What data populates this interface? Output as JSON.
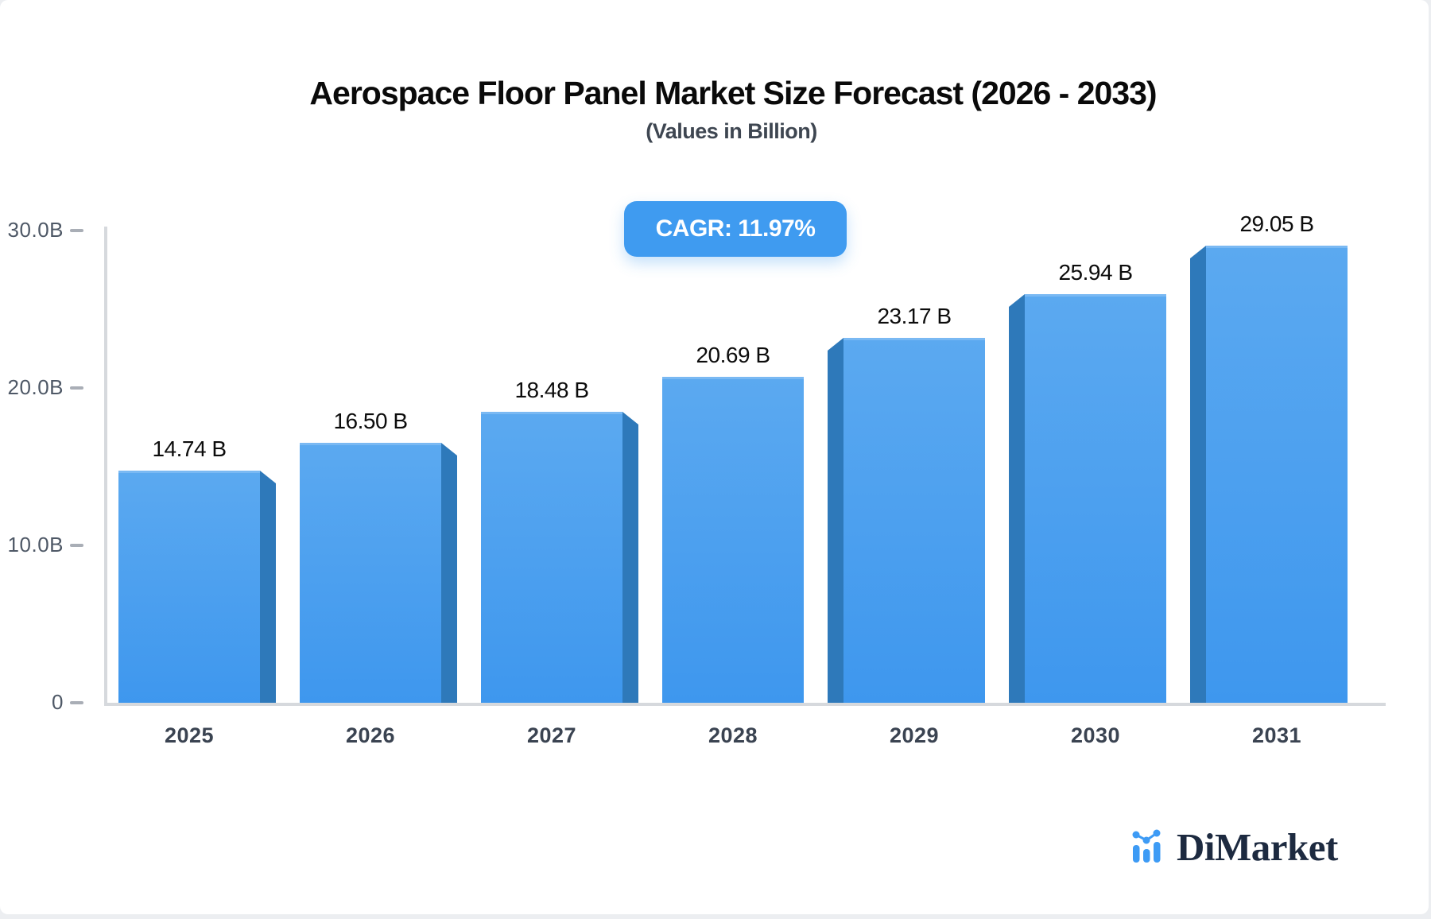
{
  "header": {
    "title": "Aerospace Floor Panel Market Size Forecast (2026 - 2033)",
    "subtitle": "(Values in Billion)",
    "cagr_label": "CAGR: 11.97%"
  },
  "chart_data": {
    "type": "bar",
    "title": "Aerospace Floor Panel Market Size Forecast (2026 - 2033)",
    "subtitle": "(Values in Billion)",
    "cagr_percent": "11.97%",
    "categories": [
      "2025",
      "2026",
      "2027",
      "2028",
      "2029",
      "2030",
      "2031"
    ],
    "values": [
      14.74,
      16.5,
      18.48,
      20.69,
      23.17,
      25.94,
      29.05
    ],
    "value_labels": [
      "14.74 B",
      "16.50 B",
      "18.48 B",
      "20.69 B",
      "23.17 B",
      "25.94 B",
      "29.05 B"
    ],
    "unit": "Billion",
    "xlabel": "",
    "ylabel": "",
    "ylim": [
      0,
      30
    ],
    "grid": false,
    "legend": "none",
    "yticks": [
      {
        "value": 30,
        "label": "30.0B"
      },
      {
        "value": 20,
        "label": "20.0B"
      },
      {
        "value": 10,
        "label": "10.0B"
      },
      {
        "value": 0,
        "label": "0"
      }
    ],
    "colors": {
      "bar_top": "#5ba9f0",
      "bar_bottom": "#3e97ee",
      "bar_highlight": "#7ab9f3",
      "bar_side": "#2e79ba",
      "badge_bg": "#3f9bf0",
      "badge_text": "#ffffff",
      "axis": "#d6d9dd",
      "tick_text": "#4e5866",
      "x_label_text": "#3a4351"
    }
  },
  "branding": {
    "logo_text": "DiMarket",
    "logo_icon": "mini-bar-trend-chart-icon",
    "logo_blue": "#3d9bf5",
    "logo_navy": "#1d2a40"
  }
}
